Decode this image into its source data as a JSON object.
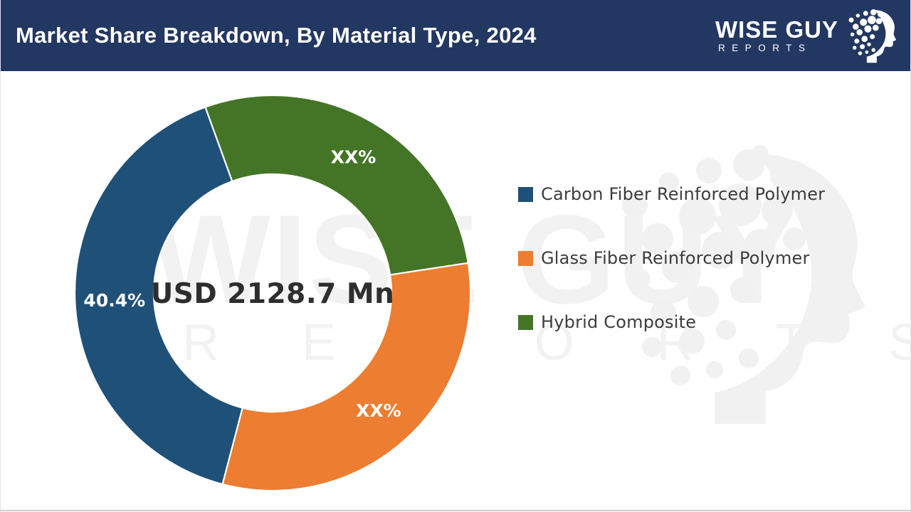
{
  "header": {
    "title": "Market Share Breakdown, By Material Type, 2024",
    "logo": {
      "name_top": "WISE GUY",
      "name_bottom": "REPORTS"
    }
  },
  "watermark": {
    "text_top": "WISE GUY",
    "text_bottom": "R E P O R T S"
  },
  "chart_data": {
    "type": "pie",
    "subtype": "donut",
    "title": "Market Share Breakdown, By Material Type, 2024",
    "center_label": "USD 2128.7 Mn",
    "units": "percent market share",
    "start_angle_deg": -19.9,
    "winding": "clockwise",
    "inner_radius_ratio": 0.6,
    "legend_position": "right",
    "segments": [
      {
        "name": "Carbon Fiber Reinforced Polymer",
        "shown_label": "40.4%",
        "value_pct": 40.4,
        "color": "#1f5078"
      },
      {
        "name": "Glass Fiber Reinforced Polymer",
        "shown_label": "XX%",
        "value_pct": 31.5,
        "color": "#ec7d31"
      },
      {
        "name": "Hybrid Composite",
        "shown_label": "XX%",
        "value_pct": 28.1,
        "color": "#447527"
      }
    ]
  },
  "colors": {
    "header_bg": "#223761",
    "slice_label_text": "#ffffff",
    "center_text": "#2e2e2e",
    "legend_text": "#3c3c3c",
    "watermark": "#f2f2f2"
  }
}
